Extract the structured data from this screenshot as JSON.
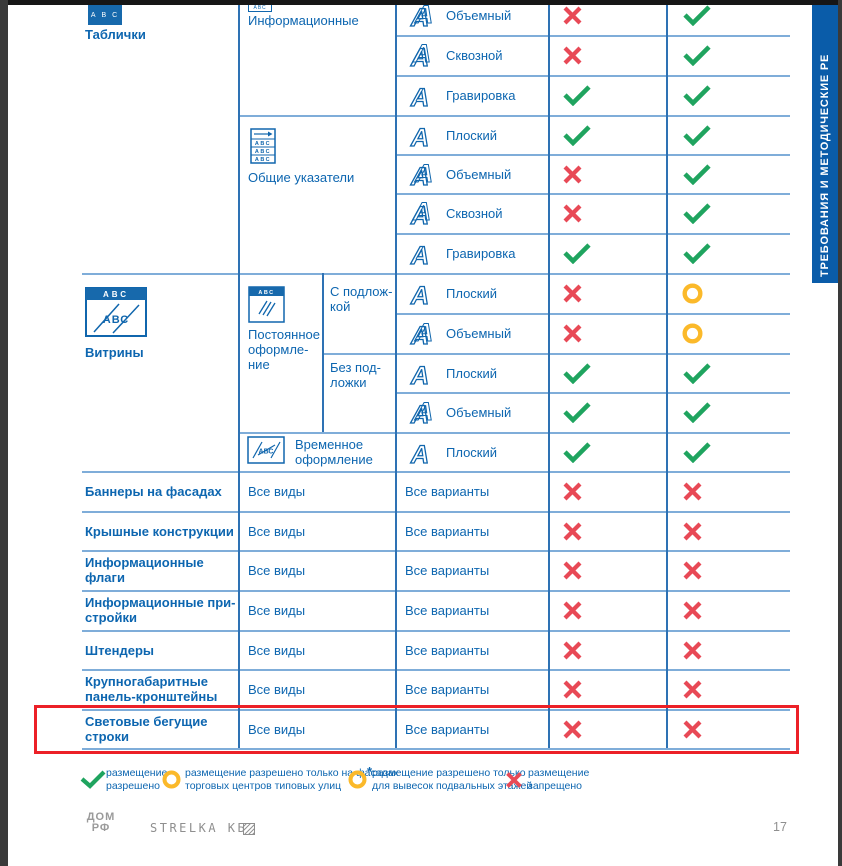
{
  "sidebar": {
    "vertical_label": "ТРЕБОВАНИЯ И МЕТОДИЧЕСКИЕ РЕ"
  },
  "icons": {
    "abc": "АВС",
    "abc_spaced": "А В С"
  },
  "table": {
    "categories": [
      {
        "label": "Таблички"
      },
      {
        "label": "Витрины"
      }
    ],
    "groups": {
      "informational": {
        "label": "Информационные"
      },
      "common_signs": {
        "label": "Общие указатели"
      },
      "permanent": {
        "label": "Постоянное\nоформле-\nние"
      },
      "with_backing": {
        "label": "С подлож-\nкой"
      },
      "without_backing": {
        "label": "Без под-\nложки"
      },
      "temporary": {
        "label": "Временное\nоформление"
      }
    },
    "type_rows": [
      {
        "label": "Объемный",
        "letter_style": "volume",
        "mark1": "cross",
        "mark2": "check"
      },
      {
        "label": "Сквозной",
        "letter_style": "through",
        "mark1": "cross",
        "mark2": "check"
      },
      {
        "label": "Гравировка",
        "letter_style": "engrave",
        "mark1": "check",
        "mark2": "check"
      },
      {
        "label": "Плоский",
        "letter_style": "flat",
        "mark1": "check",
        "mark2": "check"
      },
      {
        "label": "Объемный",
        "letter_style": "volume",
        "mark1": "cross",
        "mark2": "check"
      },
      {
        "label": "Сквозной",
        "letter_style": "through",
        "mark1": "cross",
        "mark2": "check"
      },
      {
        "label": "Гравировка",
        "letter_style": "engrave",
        "mark1": "check",
        "mark2": "check"
      },
      {
        "label": "Плоский",
        "letter_style": "flat",
        "mark1": "cross",
        "mark2": "circle"
      },
      {
        "label": "Объемный",
        "letter_style": "volume",
        "mark1": "cross",
        "mark2": "circle"
      },
      {
        "label": "Плоский",
        "letter_style": "flat",
        "mark1": "check",
        "mark2": "check"
      },
      {
        "label": "Объемный",
        "letter_style": "volume",
        "mark1": "check",
        "mark2": "check"
      },
      {
        "label": "Плоский",
        "letter_style": "flat",
        "mark1": "check",
        "mark2": "check"
      }
    ],
    "simple_rows": [
      {
        "label": "Баннеры на фасадах",
        "kinds": "Все виды",
        "variants": "Все варианты",
        "mark1": "cross",
        "mark2": "cross",
        "highlighted": false
      },
      {
        "label": "Крышные конструкции",
        "kinds": "Все виды",
        "variants": "Все варианты",
        "mark1": "cross",
        "mark2": "cross",
        "highlighted": false
      },
      {
        "label": "Информационные флаги",
        "kinds": "Все виды",
        "variants": "Все варианты",
        "mark1": "cross",
        "mark2": "cross",
        "highlighted": false
      },
      {
        "label": "Информационные при-\nстройки",
        "kinds": "Все виды",
        "variants": "Все варианты",
        "mark1": "cross",
        "mark2": "cross",
        "highlighted": false
      },
      {
        "label": "Штендеры",
        "kinds": "Все виды",
        "variants": "Все варианты",
        "mark1": "cross",
        "mark2": "cross",
        "highlighted": false
      },
      {
        "label": "Крупногабаритные\nпанель-кронштейны",
        "kinds": "Все виды",
        "variants": "Все варианты",
        "mark1": "cross",
        "mark2": "cross",
        "highlighted": false
      },
      {
        "label": "Световые бегущие\nстроки",
        "kinds": "Все виды",
        "variants": "Все варианты",
        "mark1": "cross",
        "mark2": "cross",
        "highlighted": true
      }
    ]
  },
  "legend": {
    "items": [
      {
        "mark": "check",
        "text": "размещение\nразрешено"
      },
      {
        "mark": "circle",
        "text": "размещение разрешено только на фасадах\nторговых центров типовых улиц"
      },
      {
        "mark": "circle-star",
        "text": "размещение разрешено только\nдля вывесок подвальных этажей"
      },
      {
        "mark": "cross",
        "text": "размещение\nзапрещено"
      }
    ]
  },
  "footer": {
    "logo_top": "ДОМ",
    "logo_bottom": "РФ",
    "brand": "STRELKA КБ",
    "page_number": "17"
  },
  "colors": {
    "accent_blue": "#0d66b0",
    "icon_blue": "#1066ad",
    "header_blue_fill": "#1769ac",
    "border_vertical": "#2e72b4",
    "border_horizontal": "#7fadd9",
    "green_check": "#1fa45f",
    "red_cross": "#e84956",
    "yellow_circle": "#fbb92a",
    "highlight_red": "#ec2027",
    "sidebar_blue": "#0a5ca9",
    "footer_gray": "#8f8f8f"
  }
}
